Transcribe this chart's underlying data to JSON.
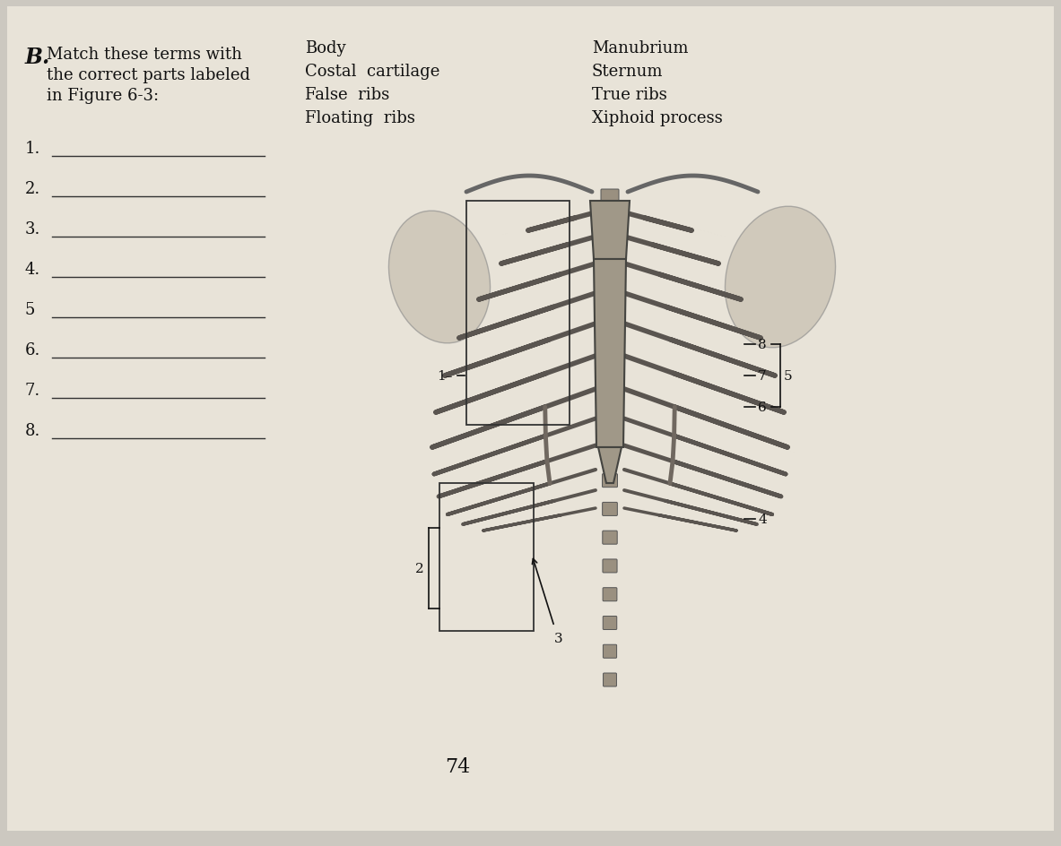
{
  "bg_color": "#ccc8c0",
  "page_bg": "#e8e3d8",
  "title_b": "B.",
  "title_main": "Match these terms with",
  "title_line2": "the correct parts labeled",
  "title_line3": "in Figure 6-3:",
  "terms_col1": [
    "Body",
    "Costal  cartilage",
    "False  ribs",
    "Floating  ribs"
  ],
  "terms_col2": [
    "Manubrium",
    "Sternum",
    "True ribs",
    "Xiphoid process"
  ],
  "answer_labels": [
    "1.",
    "2.",
    "3.",
    "4.",
    "5",
    "6.",
    "7.",
    "8."
  ],
  "page_number": "74",
  "text_color": "#111111",
  "line_color": "#333333",
  "rib_color": "#5a5550",
  "bone_face": "#a09888",
  "bone_edge": "#444440"
}
